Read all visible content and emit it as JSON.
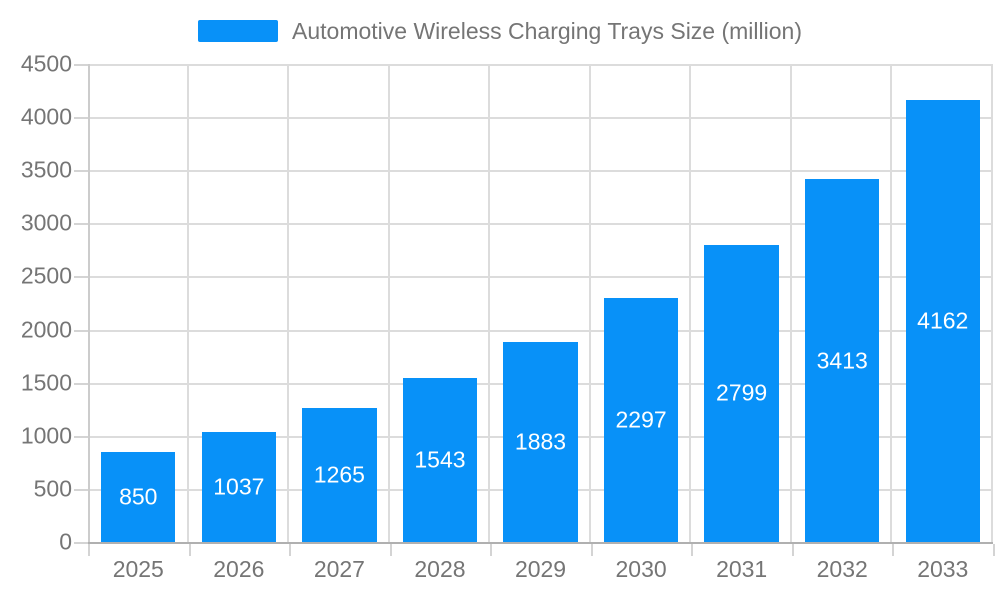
{
  "chart_data": {
    "type": "bar",
    "title": "Automotive Wireless Charging Trays Size (million)",
    "legend": [
      "Automotive Wireless Charging Trays Size (million)"
    ],
    "legend_position": "top-center",
    "categories": [
      "2025",
      "2026",
      "2027",
      "2028",
      "2029",
      "2030",
      "2031",
      "2032",
      "2033"
    ],
    "values": [
      850,
      1037,
      1265,
      1543,
      1883,
      2297,
      2799,
      3413,
      4162
    ],
    "xlabel": "",
    "ylabel": "",
    "ylim": [
      0,
      4500
    ],
    "ytick_step": 500,
    "yticks": [
      0,
      500,
      1000,
      1500,
      2000,
      2500,
      3000,
      3500,
      4000,
      4500
    ],
    "grid": true,
    "bar_labels_inside": true,
    "colors": {
      "bar": "#0891f8",
      "bar_label": "#ffffff",
      "axis_label": "#757575",
      "legend_text": "#757575",
      "grid_line": "#dcdcdc",
      "x_axis_line": "#b0b0b0",
      "y_axis_line": "#cccccc",
      "tick_line": "#d4d4d4",
      "background": "#ffffff"
    }
  }
}
